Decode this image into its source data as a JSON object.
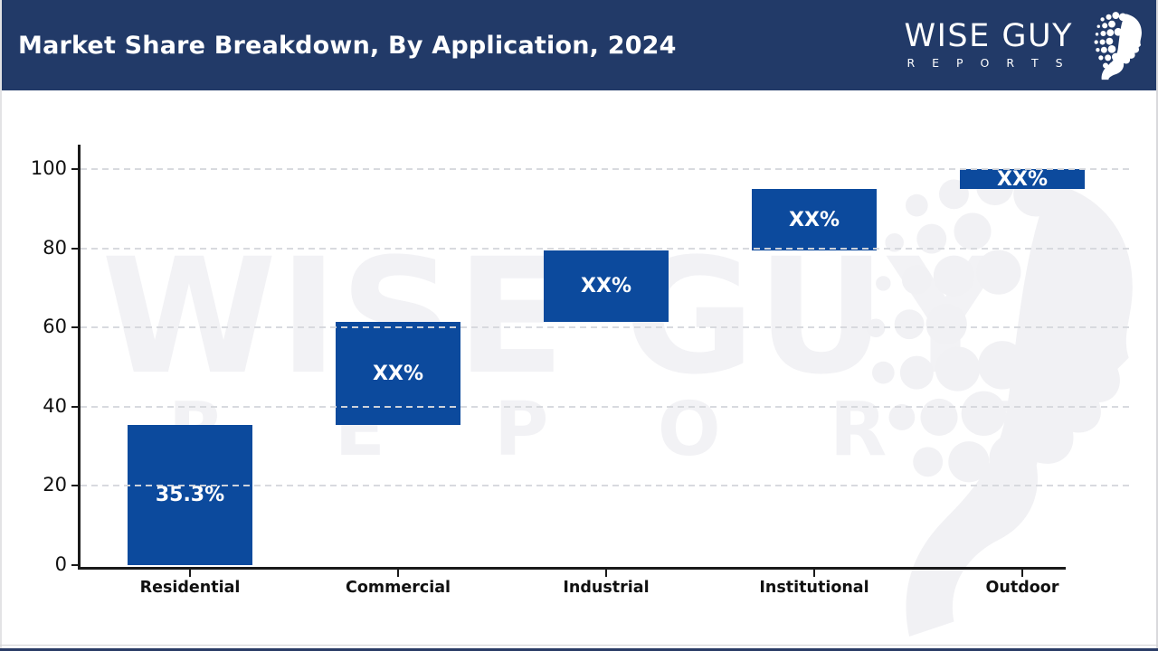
{
  "header": {
    "title": "Market Share Breakdown, By Application, 2024",
    "logo": {
      "line1": "WISE GUY",
      "line2": "R E P O R T S"
    }
  },
  "watermark": {
    "line1": "WISE GUY",
    "line2": "R E P O R T S"
  },
  "chart_data": {
    "type": "bar",
    "subtype": "waterfall",
    "title": "Market Share Breakdown, By Application, 2024",
    "xlabel": "",
    "ylabel": "",
    "categories": [
      "Residential",
      "Commercial",
      "Industrial",
      "Institutional",
      "Outdoor"
    ],
    "bars": [
      {
        "category": "Residential",
        "start": 0,
        "end": 35.3,
        "value": 35.3,
        "label": "35.3%"
      },
      {
        "category": "Commercial",
        "start": 35.3,
        "end": 61.5,
        "value": 26.2,
        "label": "XX%"
      },
      {
        "category": "Industrial",
        "start": 61.5,
        "end": 79.4,
        "value": 17.9,
        "label": "XX%"
      },
      {
        "category": "Institutional",
        "start": 79.4,
        "end": 94.9,
        "value": 15.5,
        "label": "XX%"
      },
      {
        "category": "Outdoor",
        "start": 94.9,
        "end": 100.0,
        "value": 5.1,
        "label": "XX%"
      }
    ],
    "y_ticks": [
      0,
      20,
      40,
      60,
      80,
      100
    ],
    "ylim": [
      0,
      106
    ],
    "grid": "horizontal-dashed",
    "legend": "none",
    "bar_color": "#0c4a9d",
    "bar_label_color": "#ffffff"
  },
  "colors": {
    "header_bg": "#223a68",
    "header_text": "#ffffff",
    "bar": "#0c4a9d",
    "gridline": "#d6d8dd",
    "axis": "#1a1a1a",
    "watermark": "#f2f2f5",
    "page_bg": "#ffffff"
  }
}
